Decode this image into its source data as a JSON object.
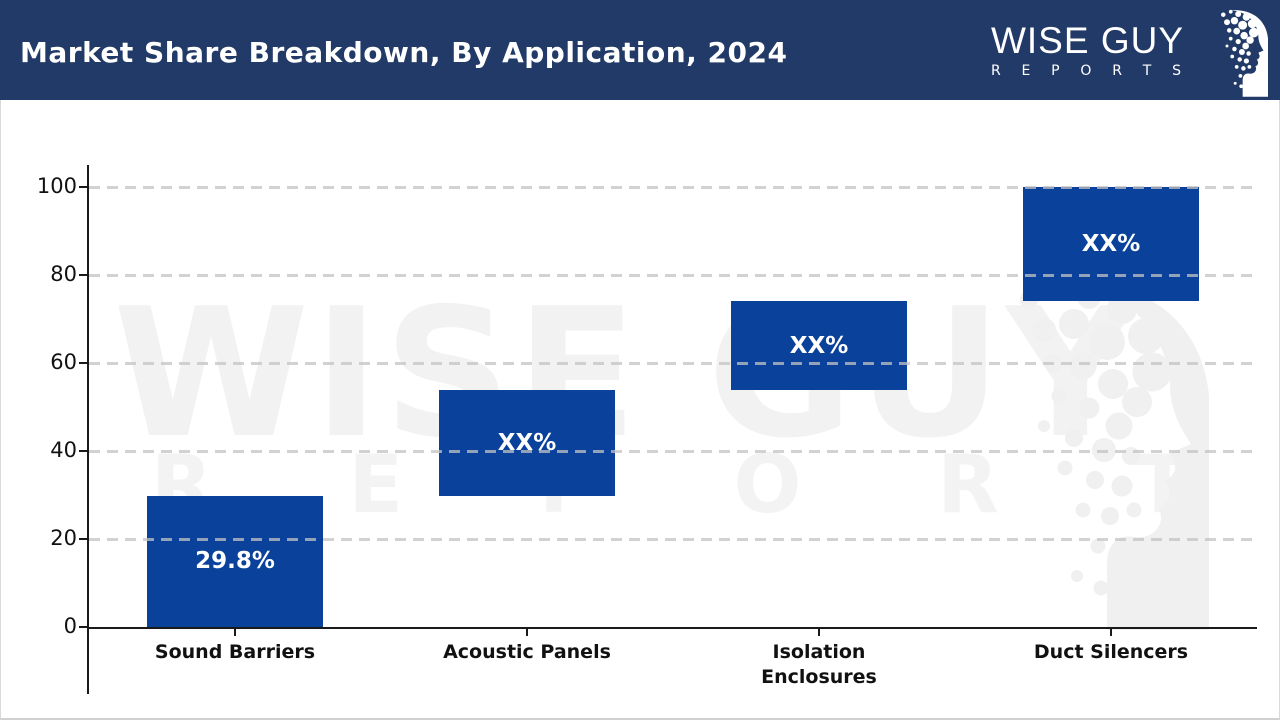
{
  "header": {
    "title": "Market Share Breakdown, By Application, 2024",
    "logo": {
      "name": "WISE GUY",
      "sub": "REPORTS",
      "icon": "dotted-face-profile-icon"
    }
  },
  "watermark": {
    "line1": "WISE GUY",
    "line2": "R E P O R T S"
  },
  "chart_data": {
    "type": "bar",
    "variant": "waterfall-floating-bars",
    "title": "Market Share Breakdown, By Application, 2024",
    "categories": [
      "Sound Barriers",
      "Acoustic Panels",
      "Isolation\nEnclosures",
      "Duct Silencers"
    ],
    "segments": [
      {
        "category": "Sound Barriers",
        "start": 0,
        "end": 29.8,
        "label": "29.8%"
      },
      {
        "category": "Acoustic Panels",
        "start": 29.8,
        "end": 53.8,
        "label": "XX%"
      },
      {
        "category": "Isolation Enclosures",
        "start": 53.8,
        "end": 74.1,
        "label": "XX%"
      },
      {
        "category": "Duct Silencers",
        "start": 74.1,
        "end": 100,
        "label": "XX%"
      }
    ],
    "yticks": [
      0,
      20,
      40,
      60,
      80,
      100
    ],
    "ylim": [
      0,
      105
    ],
    "xlabel": "",
    "ylabel": "",
    "grid": "dashed-horizontal",
    "legend_position": "none",
    "bar_color": "#0A429B",
    "value_label_color": "#ffffff"
  },
  "colors": {
    "header_bg": "#223A67",
    "chart_bg": "#ffffff",
    "axis": "#1a1a1a",
    "gridline": "#c8c8c8",
    "tick_text": "#111111",
    "border": "#d9d9d9",
    "watermark": "#f2f2f2"
  }
}
